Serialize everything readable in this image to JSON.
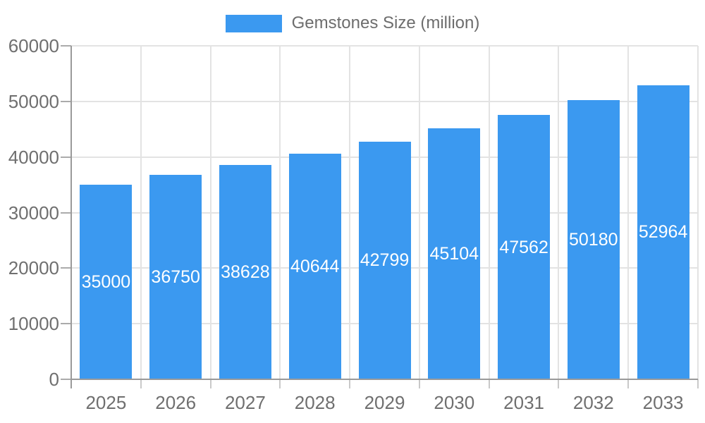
{
  "legend": {
    "label": "Gemstones Size (million)"
  },
  "chart_data": {
    "type": "bar",
    "title": "Gemstones Size (million)",
    "categories": [
      "2025",
      "2026",
      "2027",
      "2028",
      "2029",
      "2030",
      "2031",
      "2032",
      "2033"
    ],
    "values": [
      35000,
      36750,
      38628,
      40644,
      42799,
      45104,
      47562,
      50180,
      52964
    ],
    "xlabel": "",
    "ylabel": "",
    "ylim": [
      0,
      60000
    ],
    "yticks": [
      0,
      10000,
      20000,
      30000,
      40000,
      50000,
      60000
    ],
    "grid": true,
    "legend_position": "top-center",
    "bar_color": "#3b99f0",
    "value_label_color": "#ffffff",
    "value_labels_inside_bars": true
  }
}
